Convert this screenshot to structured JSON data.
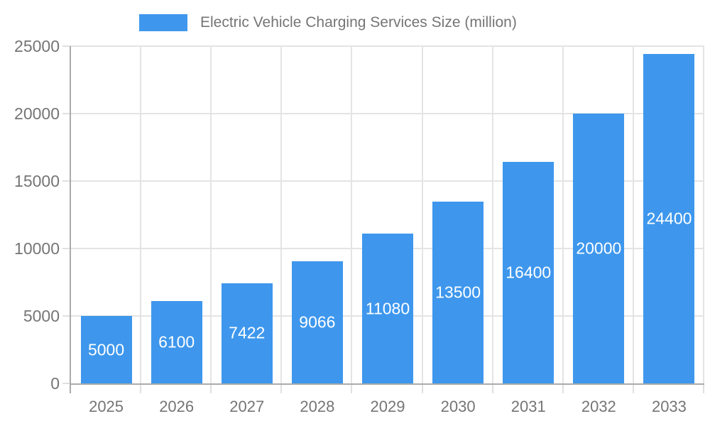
{
  "chart_data": {
    "type": "bar",
    "title": "Electric Vehicle Charging Services Size (million)",
    "categories": [
      "2025",
      "2026",
      "2027",
      "2028",
      "2029",
      "2030",
      "2031",
      "2032",
      "2033"
    ],
    "values": [
      5000,
      6100,
      7422,
      9066,
      11080,
      13500,
      16400,
      20000,
      24400
    ],
    "xlabel": "",
    "ylabel": "",
    "ylim": [
      0,
      25000
    ],
    "yticks": [
      0,
      5000,
      10000,
      15000,
      20000,
      25000
    ],
    "grid": true,
    "legend_position": "top",
    "data_labels": "inside-center-white"
  },
  "legend": {
    "label": "Electric Vehicle Charging Services Size (million)"
  },
  "colors": {
    "bar": "#3E97ED",
    "bar_label_text": "#ffffff",
    "axis_line": "#ABABAB",
    "gridline": "#E4E4E4",
    "tick": "#E0E0E0",
    "axis_text": "#757575",
    "legend_text": "#757575",
    "background": "#ffffff"
  }
}
